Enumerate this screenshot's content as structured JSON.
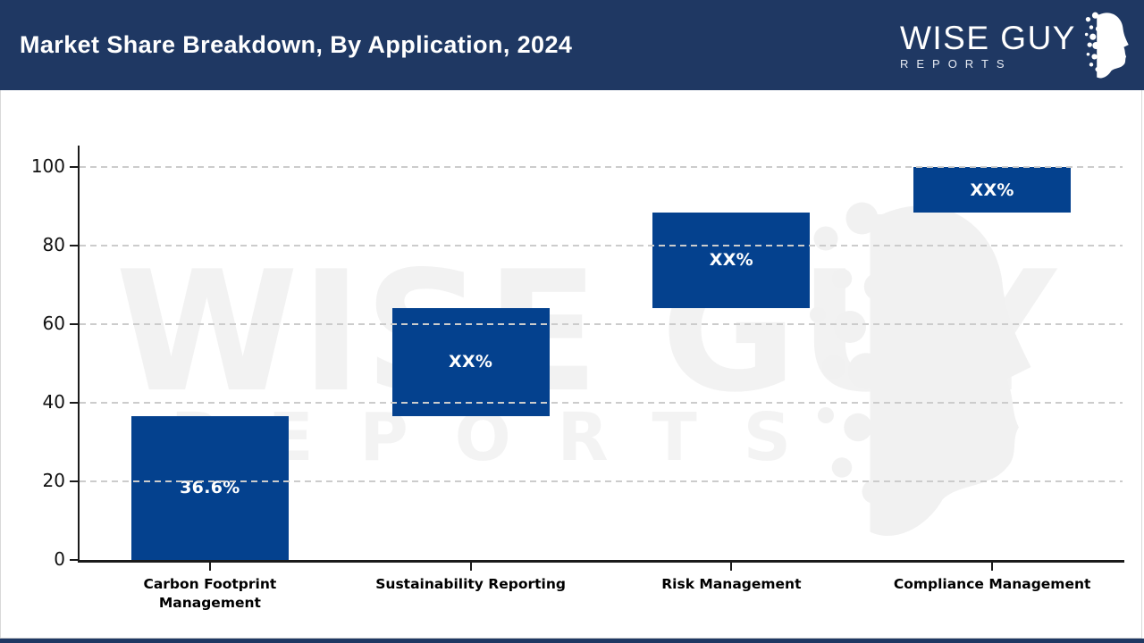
{
  "header": {
    "title": "Market Share Breakdown, By Application, 2024",
    "bg_color": "#1f3863",
    "brand": {
      "line1": "WISE GUY",
      "line2": "REPORTS"
    }
  },
  "watermark": {
    "line1": "WISE GUY",
    "line2": "REPORTS",
    "color": "#f2f2f2"
  },
  "chart_data": {
    "type": "bar",
    "subtype": "waterfall",
    "title": "Market Share Breakdown, By Application, 2024",
    "categories": [
      "Carbon Footprint Management",
      "Sustainability Reporting",
      "Risk Management",
      "Compliance Management"
    ],
    "series": [
      {
        "name": "Market share (%)",
        "segments": [
          {
            "start": 0,
            "end": 36.6,
            "label": "36.6%"
          },
          {
            "start": 36.6,
            "end": 64.1,
            "label": "XX%"
          },
          {
            "start": 64.1,
            "end": 88.4,
            "label": "XX%"
          },
          {
            "start": 88.4,
            "end": 100,
            "label": "XX%"
          }
        ]
      }
    ],
    "xlabel": "",
    "ylabel": "",
    "ylim": [
      0,
      100
    ],
    "yticks": [
      0,
      20,
      40,
      60,
      80,
      100
    ],
    "grid": "horizontal-dashed",
    "legend": "none",
    "bar_color": "#04418e",
    "bar_label_color": "#ffffff",
    "grid_color": "#cccccc",
    "axis_color": "#1a1a1a"
  }
}
